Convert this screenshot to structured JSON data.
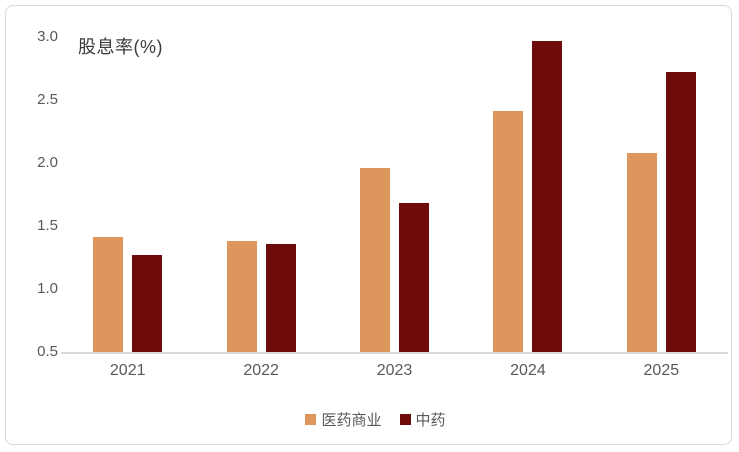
{
  "chart_data": {
    "type": "bar",
    "title": "股息率(%)",
    "categories": [
      "2021",
      "2022",
      "2023",
      "2024",
      "2025"
    ],
    "series": [
      {
        "key": "pharma-commerce",
        "name": "医药商业",
        "color": "#DD965C",
        "values": [
          1.41,
          1.38,
          1.96,
          2.41,
          2.08
        ]
      },
      {
        "key": "tcm",
        "name": "中药",
        "color": "#6E0B0B",
        "values": [
          1.27,
          1.36,
          1.68,
          2.97,
          2.72
        ]
      }
    ],
    "ylim": [
      0.5,
      3.0
    ],
    "y_ticks": [
      "3.0",
      "2.5",
      "2.0",
      "1.5",
      "1.0",
      "0.5"
    ],
    "xlabel": "",
    "ylabel": "股息率(%)",
    "grid": false,
    "legend_position": "bottom",
    "colors": {
      "axis_line": "#D9D9D9",
      "tick_label": "#595959",
      "title_text": "#3A3A3A",
      "frame_border": "#D9D9D9"
    }
  }
}
